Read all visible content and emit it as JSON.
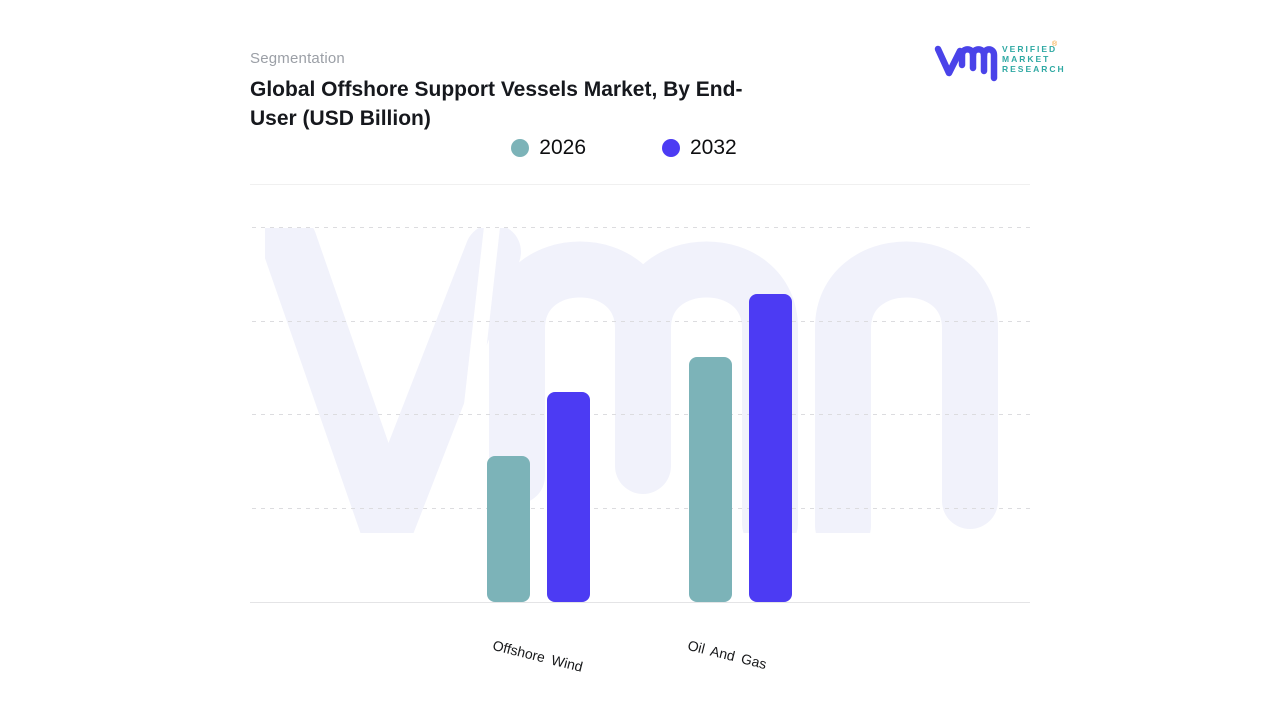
{
  "header": {
    "eyebrow": "Segmentation",
    "title_line1": "Global Offshore Support Vessels Market, By End-",
    "title_line2": "User (USD Billion)"
  },
  "legend": [
    {
      "label": "2026",
      "color": "#7cb3b8"
    },
    {
      "label": "2032",
      "color": "#4c3bf3"
    }
  ],
  "chart_data": {
    "type": "bar",
    "title": "Global Offshore Support Vessels Market, By End-User (USD Billion)",
    "categories": [
      "Offshore Wind",
      "Oil And Gas"
    ],
    "series": [
      {
        "name": "2026",
        "color": "#7cb3b8",
        "values": [
          1.56,
          2.62
        ]
      },
      {
        "name": "2032",
        "color": "#4c3bf3",
        "values": [
          2.24,
          3.29
        ]
      }
    ],
    "xlabel": "",
    "ylabel": "",
    "ylim": [
      0,
      4
    ],
    "y_axis_labels_visible": false,
    "gridlines": "horizontal-dashed",
    "legend_position": "top-center",
    "bar_corner_radius_px": 8,
    "x_label_rotation_deg": 14,
    "units_note": "Y axis unlabeled in source; values are estimated gridline units (USD Billion scale)"
  },
  "watermark": {
    "monogram": "vmr",
    "color": "#f1f2fb"
  },
  "logo": {
    "monogram": "vmr",
    "monogram_color": "#4a43e9",
    "brand_lines": [
      "VERIFIED",
      "MARKET",
      "RESEARCH"
    ],
    "registered_mark": "®",
    "text_color": "#2fa9a3",
    "mark_color": "#f59a23"
  }
}
